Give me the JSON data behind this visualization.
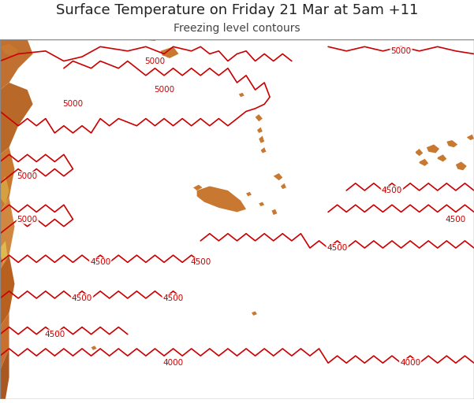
{
  "title": "Surface Temperature on Friday 21 Mar at 5am +11",
  "subtitle": "Freezing level contours",
  "title_fontsize": 13,
  "subtitle_fontsize": 10,
  "background_color": "#ffffff",
  "map_background": "#b8c9e8",
  "header_bg": "#f0f0f0",
  "contour_color": "#cc0000",
  "contour_label_fontsize": 7.5,
  "border_color": "#999999",
  "land_colors": {
    "deep_land": "#c8763c",
    "mid_land": "#d4924a",
    "coastal": "#e8b870",
    "low": "#f0d080",
    "green": "#a8b840"
  },
  "lon_min": 154.0,
  "lon_max": 180.0,
  "lat_min": -35.0,
  "lat_max": -10.0,
  "grid_lon_step": 5.0,
  "grid_lat_step": 5.0
}
